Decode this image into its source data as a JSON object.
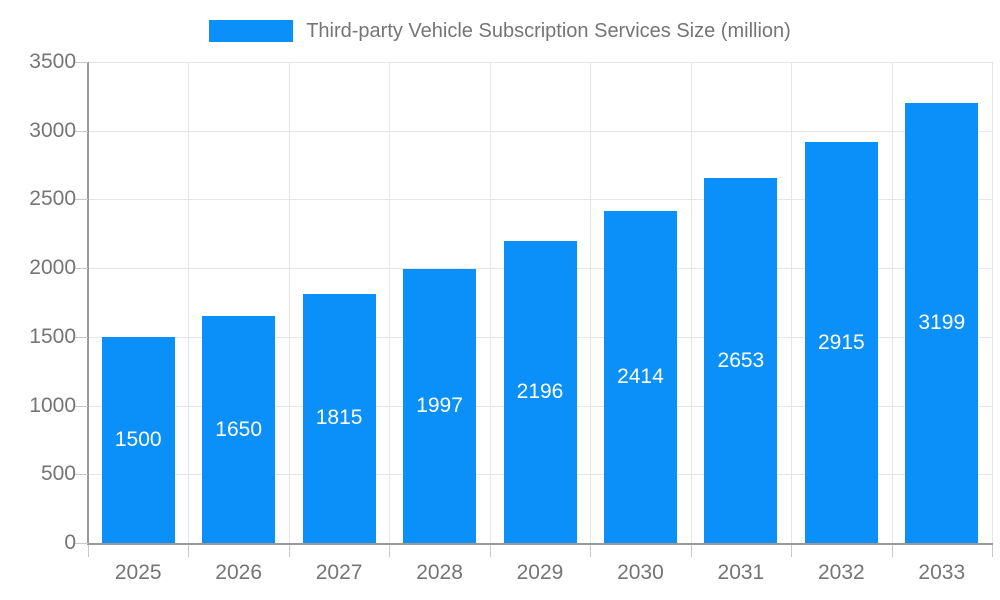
{
  "legend": {
    "label": "Third-party Vehicle Subscription Services Size (million)"
  },
  "chart_data": {
    "type": "bar",
    "title": "Third-party Vehicle Subscription Services Size (million)",
    "categories": [
      "2025",
      "2026",
      "2027",
      "2028",
      "2029",
      "2030",
      "2031",
      "2032",
      "2033"
    ],
    "values": [
      1500,
      1650,
      1815,
      1997,
      2196,
      2414,
      2653,
      2915,
      3199
    ],
    "xlabel": "",
    "ylabel": "",
    "ylim": [
      0,
      3500
    ],
    "yticks": [
      0,
      500,
      1000,
      1500,
      2000,
      2500,
      3000,
      3500
    ],
    "grid": true,
    "legend_position": "top-center",
    "bar_label_position": "inside-center",
    "colors": {
      "bar": "#0a90f8",
      "grid": "#e6e6e6",
      "axis": "#999999",
      "tick": "#c9c9c9",
      "label": "#757575",
      "bar_label": "#ffffff",
      "background": "#ffffff"
    }
  }
}
